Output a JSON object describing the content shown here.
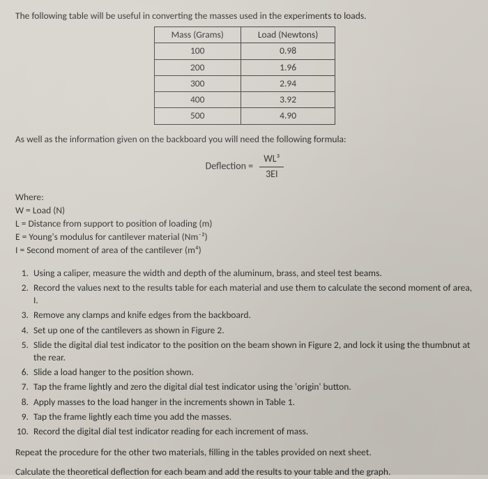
{
  "intro": "The following table will be useful in converting the masses used in the experiments to loads.",
  "table": {
    "headers": [
      "Mass (Grams)",
      "Load (Newtons)"
    ],
    "rows": [
      [
        "100",
        "0.98"
      ],
      [
        "200",
        "1.96"
      ],
      [
        "300",
        "2.94"
      ],
      [
        "400",
        "3.92"
      ],
      [
        "500",
        "4.90"
      ]
    ],
    "border_color": "#3a3a3a",
    "cell_padding_h": 24,
    "font_size": 13.5
  },
  "formula_intro": "As well as the information given on the backboard you will need the following formula:",
  "formula": {
    "lhs": "Deflection =",
    "numerator": "WL³",
    "denominator": "3EI"
  },
  "where": {
    "title": "Where:",
    "lines": [
      "W = Load (N)",
      "L = Distance from support to position of loading (m)",
      "E = Young's modulus for cantilever material (Nm⁻²)",
      "I = Second moment of area of the cantilever (m⁴)"
    ]
  },
  "steps": [
    "Using a caliper, measure the width and depth of the aluminum, brass, and steel test beams.",
    "Record the values next to the results table for each material and use them to calculate the second moment of area, I.",
    "Remove any clamps and knife edges from the backboard.",
    "Set up one of the cantilevers as shown in Figure 2.",
    "Slide the digital dial test indicator to the position on the beam shown in Figure 2, and lock it using the thumbnut at the rear.",
    "Slide a load hanger to the position shown.",
    "Tap the frame lightly and zero the digital dial test indicator using the 'origin' button.",
    "Apply masses to the load hanger in the increments shown in Table 1.",
    "Tap the frame lightly each time you add the masses.",
    "Record the digital dial test indicator reading for each increment of mass."
  ],
  "repeat": "Repeat the procedure for the other two materials, filling in the tables provided on next sheet.",
  "calc": "Calculate the theoretical deflection for each beam and add the results to your table and the graph.",
  "colors": {
    "background": "#d2cec7",
    "text": "#2a2a2a",
    "border": "#3a3a3a"
  },
  "typography": {
    "body_fontsize": 13.5,
    "font_family": "Calibri"
  }
}
